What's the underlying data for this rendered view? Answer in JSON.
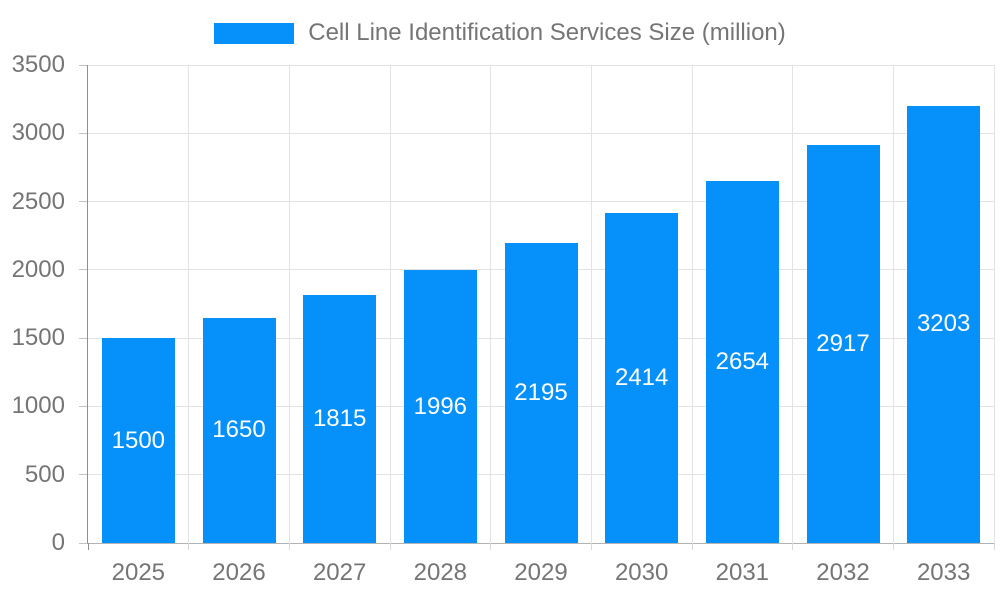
{
  "chart_data": {
    "type": "bar",
    "title": "Cell Line Identification Services Size (million)",
    "categories": [
      "2025",
      "2026",
      "2027",
      "2028",
      "2029",
      "2030",
      "2031",
      "2032",
      "2033"
    ],
    "values": [
      1500,
      1650,
      1815,
      1996,
      2195,
      2414,
      2654,
      2917,
      3203
    ],
    "xlabel": "",
    "ylabel": "",
    "ylim": [
      0,
      3500
    ],
    "ytick_step": 500,
    "ytick_labels": [
      "0",
      "500",
      "1000",
      "1500",
      "2000",
      "2500",
      "3000",
      "3500"
    ],
    "grid": true,
    "legend_position": "top",
    "bar_color": "#0590fa",
    "bar_label_color": "#ffffff",
    "axis_text_color": "#757575"
  }
}
